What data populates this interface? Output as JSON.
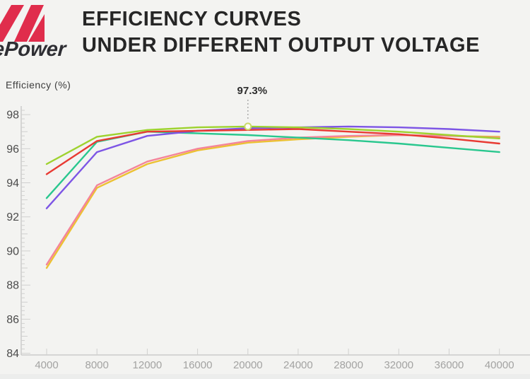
{
  "header": {
    "logo_text": "ePower",
    "logo_color": "#e02d4c",
    "title_line1": "EFFICIENCY CURVES",
    "title_line2": "UNDER DIFFERENT OUTPUT VOLTAGE"
  },
  "chart_data": {
    "type": "line",
    "title": "EFFICIENCY CURVES UNDER DIFFERENT OUTPUT VOLTAGE",
    "xlabel": "",
    "ylabel": "Efficiency (%)",
    "grid": false,
    "legend": "none",
    "x": [
      4000,
      8000,
      12000,
      16000,
      20000,
      24000,
      28000,
      32000,
      36000,
      40000
    ],
    "xtick_labels": [
      "4000",
      "8000",
      "12000",
      "16000",
      "20000",
      "24000",
      "28000",
      "32000",
      "36000",
      "40000"
    ],
    "ylim": [
      83.9,
      98.5
    ],
    "yticks": [
      84,
      86,
      88,
      90,
      92,
      94,
      96,
      98
    ],
    "series": [
      {
        "name": "line-gold",
        "color": "#ecc133",
        "values": [
          89.0,
          93.7,
          95.1,
          95.9,
          96.35,
          96.55,
          96.7,
          96.8,
          96.75,
          96.7
        ]
      },
      {
        "name": "line-pink",
        "color": "#f4849a",
        "values": [
          89.2,
          93.85,
          95.25,
          96.0,
          96.45,
          96.65,
          96.75,
          96.8,
          96.75,
          96.65
        ]
      },
      {
        "name": "line-green",
        "color": "#29c78e",
        "values": [
          93.1,
          96.4,
          97.0,
          96.9,
          96.8,
          96.65,
          96.5,
          96.3,
          96.05,
          95.8
        ]
      },
      {
        "name": "line-purple",
        "color": "#7d55e5",
        "values": [
          92.5,
          95.8,
          96.75,
          97.05,
          97.2,
          97.25,
          97.3,
          97.25,
          97.15,
          97.0
        ]
      },
      {
        "name": "line-red",
        "color": "#e83a33",
        "values": [
          94.5,
          96.45,
          97.0,
          97.05,
          97.1,
          97.15,
          97.0,
          96.85,
          96.6,
          96.3
        ]
      },
      {
        "name": "line-yellowgreen",
        "color": "#9ed22f",
        "values": [
          95.1,
          96.7,
          97.1,
          97.25,
          97.3,
          97.25,
          97.15,
          97.0,
          96.8,
          96.6
        ]
      }
    ],
    "annotation": {
      "text": "97.3%",
      "x": 20000,
      "y": 97.3,
      "series": "line-yellowgreen"
    },
    "colors": {
      "axis": "#cbcbca",
      "tick": "#d0d0cf",
      "xtick_label": "#a3a3a2",
      "ytick_label": "#4b4b4b",
      "annotation_text": "#2e2e2e",
      "annotation_line": "#9b9b9b",
      "marker_fill": "#fdfdf4",
      "marker_ring": "#c9da69"
    }
  }
}
